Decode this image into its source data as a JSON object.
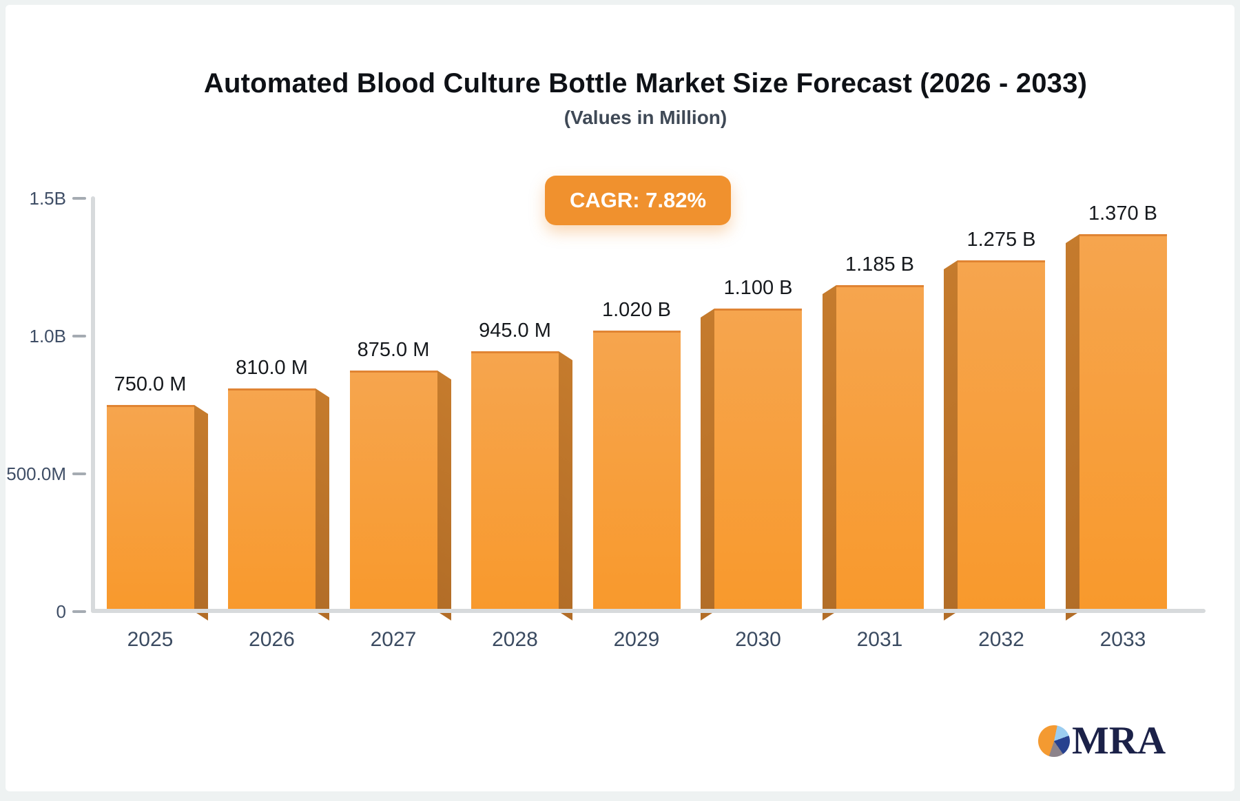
{
  "chart_data": {
    "type": "bar",
    "title": "Automated Blood Culture Bottle Market Size Forecast (2026 - 2033)",
    "subtitle": "(Values in Million)",
    "badge_label": "CAGR: 7.82%",
    "unit": "Million",
    "categories": [
      "2025",
      "2026",
      "2027",
      "2028",
      "2029",
      "2030",
      "2031",
      "2032",
      "2033"
    ],
    "values_in_millions": [
      750,
      810,
      875,
      945,
      1020,
      1100,
      1185,
      1275,
      1370
    ],
    "bar_value_labels": [
      "750.0 M",
      "810.0 M",
      "875.0 M",
      "945.0 M",
      "1.020 B",
      "1.100 B",
      "1.185 B",
      "1.275 B",
      "1.370 B"
    ],
    "y_axis": {
      "lim_millions": [
        0,
        1500
      ],
      "tick_labels": [
        "1.5B",
        "1.0B",
        "500.0M",
        "0"
      ],
      "tick_values_millions": [
        1500,
        1000,
        500,
        0
      ]
    },
    "grid": false,
    "legend": false,
    "colors": {
      "bar_top": "#f6a54e",
      "bar_bottom": "#f8992c",
      "bar_edge": "#e08433",
      "bar_side": "#c57b2d",
      "bar_side_dark": "#b26d27",
      "axis_line": "#d7dadc",
      "tick": "#a5abb2",
      "tick_label": "#3f4e66",
      "x_label": "#3b4b61",
      "value_label": "#16191d",
      "badge_bg": "#f0912e",
      "badge_text": "#ffffff",
      "title": "#0e1116",
      "subtitle": "#3f4956"
    }
  },
  "logo": {
    "text": "MRA",
    "icon": "pie-chart-icon",
    "text_color": "#1b2148",
    "pie_colors": {
      "orange": "#f49a31",
      "lightblue": "#9bcdf0",
      "navy": "#27418f",
      "gray": "#8c838b"
    }
  }
}
